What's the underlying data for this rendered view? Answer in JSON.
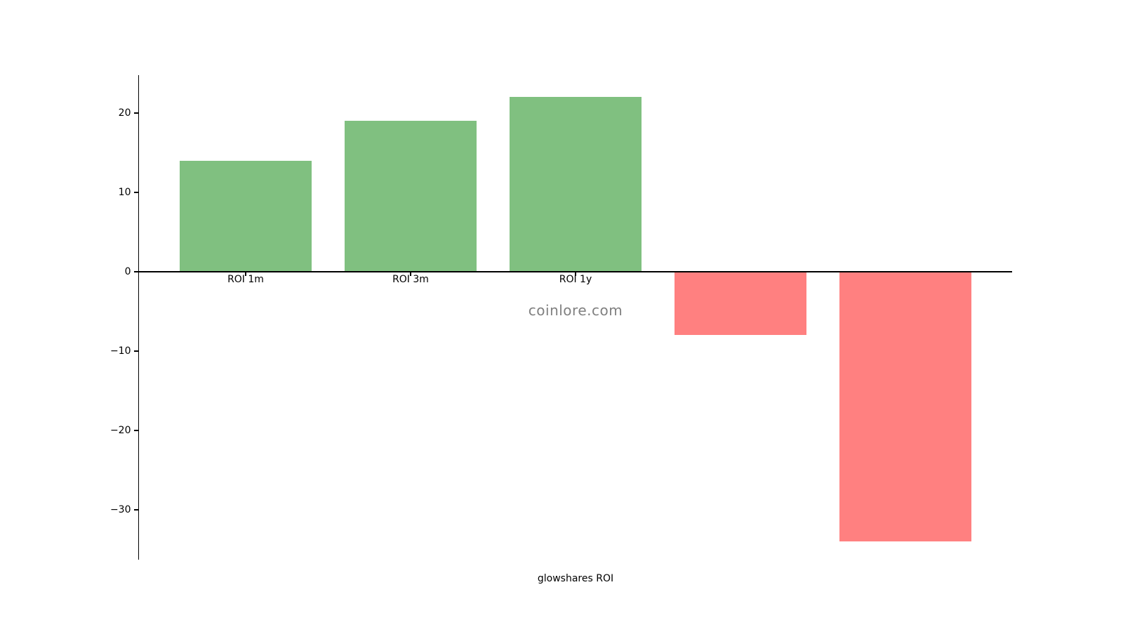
{
  "watermark": "coinlore.com",
  "chart_data": {
    "type": "bar",
    "title": "",
    "xlabel": "glowshares ROI",
    "ylabel": "",
    "categories": [
      "ROI 1m",
      "ROI 3m",
      "ROI 1y",
      "",
      ""
    ],
    "values": [
      14,
      19,
      22,
      -8,
      -34
    ],
    "yticks": [
      20,
      10,
      0,
      -10,
      -20,
      -30
    ],
    "ytick_labels": [
      "20",
      "10",
      "0",
      "−10",
      "−20",
      "−30"
    ],
    "ylim": [
      -36.3,
      24.8
    ],
    "grid": false,
    "legend": "none",
    "colors": {
      "positive": "#80c080",
      "negative": "#ff8080",
      "axis": "#000000",
      "watermark": "#808080",
      "background": "#ffffff"
    }
  }
}
